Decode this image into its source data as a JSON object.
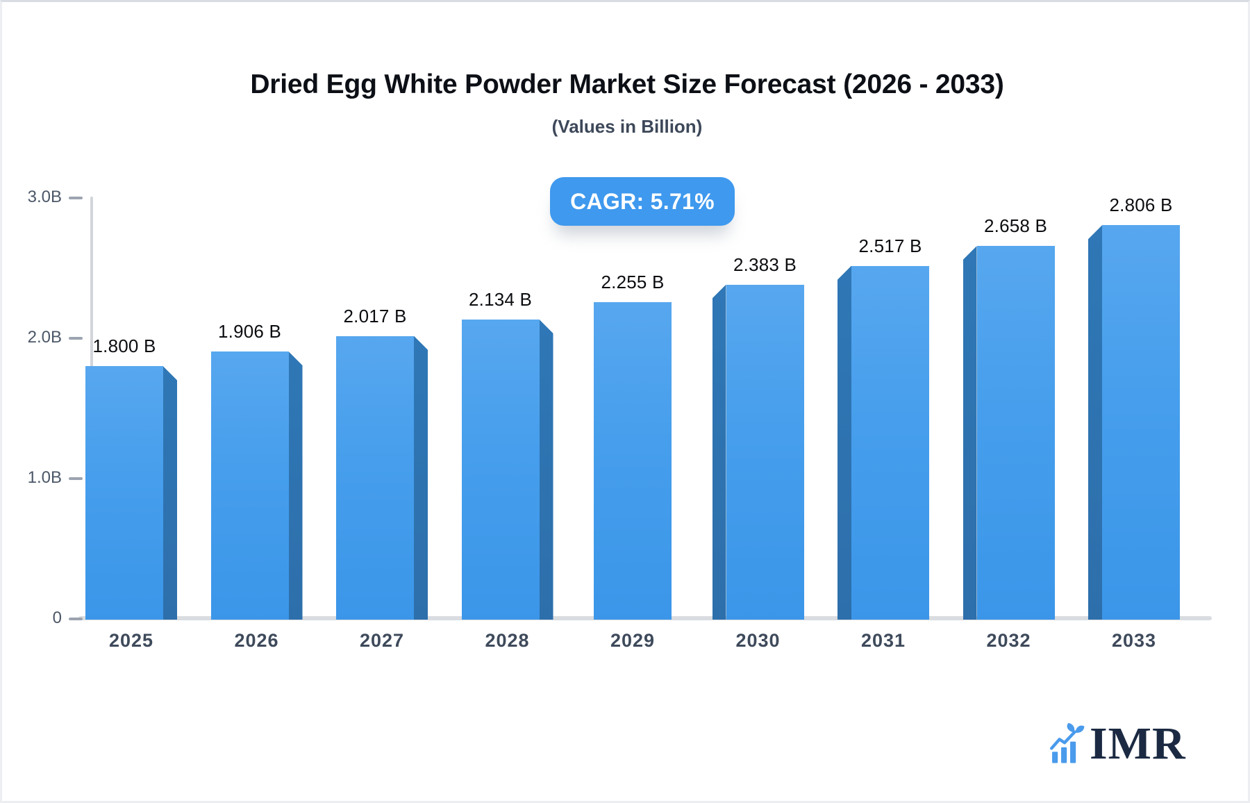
{
  "header": {
    "title": "Dried Egg White Powder Market Size Forecast (2026 - 2033)",
    "subtitle": "(Values in Billion)"
  },
  "badge": {
    "label": "CAGR: 5.71%"
  },
  "chart_data": {
    "type": "bar",
    "title": "Dried Egg White Powder Market Size Forecast (2026 - 2033)",
    "subtitle": "(Values in Billion)",
    "cagr_percent": 5.71,
    "categories": [
      "2025",
      "2026",
      "2027",
      "2028",
      "2029",
      "2030",
      "2031",
      "2032",
      "2033"
    ],
    "values": [
      1.8,
      1.906,
      2.017,
      2.134,
      2.255,
      2.383,
      2.517,
      2.658,
      2.806
    ],
    "value_labels": [
      "1.800 B",
      "1.906 B",
      "2.017 B",
      "2.134 B",
      "2.255 B",
      "2.383 B",
      "2.517 B",
      "2.658 B",
      "2.806 B"
    ],
    "ylim": [
      0,
      3
    ],
    "y_ticks": [
      {
        "label": "3.0B",
        "value": 3
      },
      {
        "label": "2.0B",
        "value": 2
      },
      {
        "label": "1.0B",
        "value": 1
      },
      {
        "label": "0",
        "value": 0
      }
    ],
    "grid": false,
    "legend": "none"
  },
  "colors": {
    "bar_face_top": "#57a7ef",
    "bar_face_bottom": "#3b96e9",
    "bar_side": "#2e73b0",
    "badge_bg": "#3f99ee",
    "badge_text": "#ffffff",
    "axis_line": "#d5d8dd",
    "tick_text": "#4b5768",
    "category_text": "#3e4a5b",
    "logo_blue": "#4a9bec",
    "logo_navy": "#1b2a42"
  },
  "logo": {
    "text": "IMR",
    "icon": "bar-chart-growth-leaf-icon"
  }
}
